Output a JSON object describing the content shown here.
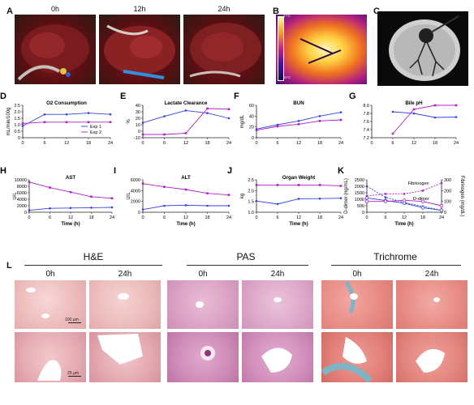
{
  "photo_panels": {
    "A": {
      "label": "A",
      "times": [
        "0h",
        "12h",
        "24h"
      ]
    },
    "B": {
      "label": "B",
      "colorbar_top": "37°C",
      "colorbar_bottom": "20°C"
    },
    "C": {
      "label": "C"
    }
  },
  "colors": {
    "exp1": "#3344dd",
    "exp2": "#b020c8",
    "blue_dashed": "#2a3fbf",
    "purple_dashed": "#8a2ab0"
  },
  "chart_data": [
    {
      "panel": "D",
      "type": "line",
      "title": "O2 Consumption",
      "ylabel": "mL/min/100g",
      "xlabel": "",
      "x": [
        0,
        6,
        12,
        18,
        24
      ],
      "ylim": [
        0,
        2.5
      ],
      "yticks": [
        "0",
        "0.5",
        "1.0",
        "1.5",
        "2.0",
        "2.5"
      ],
      "xticks": [
        "0",
        "6",
        "12",
        "18",
        "24"
      ],
      "series": [
        {
          "name": "Exp 1",
          "values": [
            0.9,
            1.8,
            1.8,
            1.9,
            1.8
          ]
        },
        {
          "name": "Exp 2",
          "values": [
            1.1,
            1.2,
            1.2,
            1.2,
            1.2
          ]
        }
      ],
      "legend": "lower-right"
    },
    {
      "panel": "E",
      "type": "line",
      "title": "Lactate Clearance",
      "ylabel": "%",
      "xlabel": "",
      "x": [
        0,
        6,
        12,
        18,
        24
      ],
      "ylim": [
        -10,
        40
      ],
      "yticks": [
        "-10",
        "0",
        "10",
        "20",
        "30",
        "40"
      ],
      "xticks": [
        "0",
        "6",
        "12",
        "18",
        "24"
      ],
      "series": [
        {
          "name": "Exp 1",
          "values": [
            13,
            23,
            32,
            28,
            20
          ]
        },
        {
          "name": "Exp 2",
          "values": [
            -5,
            -5,
            -3,
            35,
            34
          ]
        }
      ]
    },
    {
      "panel": "F",
      "type": "line",
      "title": "BUN",
      "ylabel": "mg/dL",
      "xlabel": "",
      "x": [
        0,
        6,
        12,
        18,
        24
      ],
      "ylim": [
        0,
        60
      ],
      "yticks": [
        "0",
        "20",
        "40",
        "60"
      ],
      "xticks": [
        "0",
        "6",
        "12",
        "18",
        "24"
      ],
      "series": [
        {
          "name": "Exp 1",
          "values": [
            16,
            24,
            31,
            40,
            47
          ]
        },
        {
          "name": "Exp 2",
          "values": [
            14,
            21,
            25,
            31,
            33
          ]
        }
      ]
    },
    {
      "panel": "G",
      "type": "line",
      "title": "Bile pH",
      "ylabel": "",
      "xlabel": "",
      "x": [
        0,
        6,
        12,
        18,
        24
      ],
      "ylim": [
        7.2,
        8.0
      ],
      "yticks": [
        "7.2",
        "7.4",
        "7.6",
        "7.8",
        "8.0"
      ],
      "xticks": [
        "0",
        "6",
        "12",
        "18",
        "24"
      ],
      "series": [
        {
          "name": "Exp 1",
          "values": [
            null,
            7.84,
            7.8,
            7.7,
            7.71
          ]
        },
        {
          "name": "Exp 2",
          "values": [
            null,
            7.3,
            7.9,
            8.0,
            8.0
          ]
        }
      ]
    },
    {
      "panel": "H",
      "type": "line",
      "title": "AST",
      "ylabel": "U/L",
      "xlabel": "Time (h)",
      "x": [
        0,
        6,
        12,
        18,
        24
      ],
      "ylim": [
        0,
        10000
      ],
      "yticks": [
        "0",
        "2000",
        "4000",
        "6000",
        "8000",
        "10000"
      ],
      "xticks": [
        "0",
        "6",
        "12",
        "18",
        "24"
      ],
      "series": [
        {
          "name": "Exp 1",
          "values": [
            600,
            1200,
            1300,
            1400,
            1500
          ]
        },
        {
          "name": "Exp 2",
          "values": [
            9300,
            7600,
            6200,
            4800,
            4300
          ]
        }
      ]
    },
    {
      "panel": "I",
      "type": "line",
      "title": "ALT",
      "ylabel": "U/L",
      "xlabel": "Time (h)",
      "x": [
        0,
        6,
        12,
        18,
        24
      ],
      "ylim": [
        0,
        6000
      ],
      "yticks": [
        "0",
        "2000",
        "4000",
        "6000"
      ],
      "xticks": [
        "0",
        "6",
        "12",
        "18",
        "24"
      ],
      "series": [
        {
          "name": "Exp 1",
          "values": [
            500,
            1200,
            1300,
            1200,
            1200
          ]
        },
        {
          "name": "Exp 2",
          "values": [
            5300,
            4700,
            4200,
            3500,
            3200
          ]
        }
      ]
    },
    {
      "panel": "J",
      "type": "line",
      "title": "Organ Weight",
      "ylabel": "kg",
      "xlabel": "Time (h)",
      "x": [
        0,
        6,
        12,
        18,
        24
      ],
      "ylim": [
        1.0,
        2.5
      ],
      "yticks": [
        "1.0",
        "1.5",
        "2.0",
        "2.5"
      ],
      "xticks": [
        "0",
        "6",
        "12",
        "18",
        "24"
      ],
      "series": [
        {
          "name": "Exp 1",
          "values": [
            1.52,
            1.38,
            1.62,
            1.63,
            1.65
          ]
        },
        {
          "name": "Exp 2",
          "values": [
            2.26,
            2.26,
            2.26,
            2.26,
            2.22
          ]
        }
      ]
    },
    {
      "panel": "K",
      "type": "line",
      "title": "",
      "ylabel": "D-dimer (ng/mL)",
      "ylabel_right": "Fibrinogen (mg/dL)",
      "xlabel": "Time (h)",
      "x": [
        0,
        6,
        12,
        18,
        24
      ],
      "ylim": [
        0,
        2500
      ],
      "ylim_right": [
        0,
        300
      ],
      "yticks": [
        "0",
        "500",
        "1000",
        "1500",
        "2000",
        "2500"
      ],
      "yticks_right": [
        "0",
        "100",
        "200",
        "300"
      ],
      "xticks": [
        "0",
        "6",
        "12",
        "18",
        "24"
      ],
      "series": [
        {
          "name": "D-dimer",
          "values": [
            2000,
            1150,
            750,
            450,
            150
          ],
          "style": "dashed-blue"
        },
        {
          "name": "",
          "values": [
            1100,
            900,
            700,
            350,
            150
          ],
          "style": "solid-blue"
        },
        {
          "name": "Fibrinogen",
          "values": [
            150,
            170,
            170,
            200,
            270
          ],
          "style": "dashed-purple"
        },
        {
          "name": "",
          "values": [
            100,
            100,
            110,
            100,
            60
          ],
          "style": "solid-purple"
        }
      ],
      "annotations": [
        "Fibrinogen",
        "D-dimer"
      ]
    }
  ],
  "histology": {
    "label": "L",
    "groups": [
      {
        "title": "H&E",
        "times": [
          "0h",
          "24h"
        ]
      },
      {
        "title": "PAS",
        "times": [
          "0h",
          "24h"
        ]
      },
      {
        "title": "Trichrome",
        "times": [
          "0h",
          "24h"
        ]
      }
    ],
    "scale_top": "100 µm",
    "scale_bottom": "25 µm"
  }
}
